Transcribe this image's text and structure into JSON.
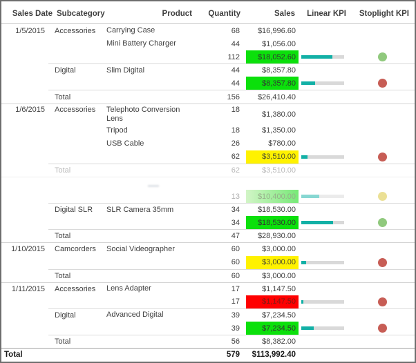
{
  "colors": {
    "sales-good": "#0be00b",
    "sales-warn": "#fff200",
    "sales-bad": "#ff0000",
    "kpi-fill": "#12b0a6",
    "kpi-track": "#d9d9d9",
    "light-good": "#90c97d",
    "light-bad": "#c75d55",
    "light-warn": "#e7db82"
  },
  "table": {
    "columns": [
      "Sales Date",
      "Subcategory",
      "Product",
      "Quantity",
      "Sales",
      "Linear KPI",
      "Stoplight KPI"
    ],
    "rows": [
      {
        "date": "1/5/2015",
        "subcategory": "Accessories",
        "product": "Carrying Case",
        "quantity": "68",
        "sales": "$16,996.60"
      },
      {
        "product": "Mini Battery Charger",
        "quantity": "44",
        "sales": "$1,056.00"
      },
      {
        "quantity": "112",
        "sales": "$18,052.60",
        "sales_bg": "green",
        "kpi_pct": 72,
        "light": "green",
        "row_class": "subtotal"
      },
      {
        "subcategory": "Digital",
        "product": "Slim Digital",
        "quantity": "44",
        "sales": "$8,357.80",
        "line": "partial"
      },
      {
        "quantity": "44",
        "sales": "$8,357.80",
        "sales_bg": "green",
        "kpi_pct": 33,
        "light": "red",
        "row_class": "subtotal"
      },
      {
        "subcategory": "Total",
        "quantity": "156",
        "sales": "$26,410.40",
        "row_class": "total",
        "line": "partial"
      },
      {
        "date": "1/6/2015",
        "subcategory": "Accessories",
        "product": "Telephoto Conversion Lens",
        "quantity": "18",
        "sales": "$1,380.00",
        "line": "full",
        "wrap": true
      },
      {
        "product": "Tripod",
        "quantity": "18",
        "sales": "$1,350.00"
      },
      {
        "product": "USB Cable",
        "quantity": "26",
        "sales": "$780.00"
      },
      {
        "quantity": "62",
        "sales": "$3,510.00",
        "sales_bg": "yellow",
        "kpi_pct": 14,
        "light": "red",
        "row_class": "subtotal"
      },
      {
        "subcategory": "Total",
        "quantity": "62",
        "sales": "$3,510.00",
        "row_class": "total total-muted",
        "line": "partial"
      },
      {
        "row_class": "faded-blank",
        "line": "faint",
        "smudge": true
      },
      {
        "quantity": "13",
        "sales": "$10,400.00",
        "sales_bg": "green-faded",
        "kpi_pct": 42,
        "light": "yellow",
        "row_class": "subtotal faded"
      },
      {
        "subcategory": "Digital SLR",
        "product": "SLR Camera 35mm",
        "quantity": "34",
        "sales": "$18,530.00",
        "line": "partial"
      },
      {
        "quantity": "34",
        "sales": "$18,530.00",
        "sales_bg": "green",
        "kpi_pct": 74,
        "light": "green",
        "row_class": "subtotal"
      },
      {
        "subcategory": "Total",
        "quantity": "47",
        "sales": "$28,930.00",
        "row_class": "total",
        "line": "partial"
      },
      {
        "date": "1/10/2015",
        "subcategory": "Camcorders",
        "product": "Social Videographer",
        "quantity": "60",
        "sales": "$3,000.00",
        "line": "full"
      },
      {
        "quantity": "60",
        "sales": "$3,000.00",
        "sales_bg": "yellow",
        "kpi_pct": 12,
        "light": "red",
        "row_class": "subtotal"
      },
      {
        "subcategory": "Total",
        "quantity": "60",
        "sales": "$3,000.00",
        "row_class": "total",
        "line": "partial"
      },
      {
        "date": "1/11/2015",
        "subcategory": "Accessories",
        "product": "Lens Adapter",
        "quantity": "17",
        "sales": "$1,147.50",
        "line": "full"
      },
      {
        "quantity": "17",
        "sales": "$1,147.50",
        "sales_bg": "red",
        "kpi_pct": 5,
        "light": "red",
        "row_class": "subtotal"
      },
      {
        "subcategory": "Digital",
        "product": "Advanced Digital",
        "quantity": "39",
        "sales": "$7,234.50",
        "line": "partial"
      },
      {
        "quantity": "39",
        "sales": "$7,234.50",
        "sales_bg": "green",
        "kpi_pct": 29,
        "light": "red",
        "row_class": "subtotal"
      },
      {
        "subcategory": "Total",
        "quantity": "56",
        "sales": "$8,382.00",
        "row_class": "total",
        "line": "partial"
      },
      {
        "date": "Total",
        "quantity": "579",
        "sales": "$113,992.40",
        "row_class": "grand-total",
        "line": "strong"
      }
    ]
  }
}
